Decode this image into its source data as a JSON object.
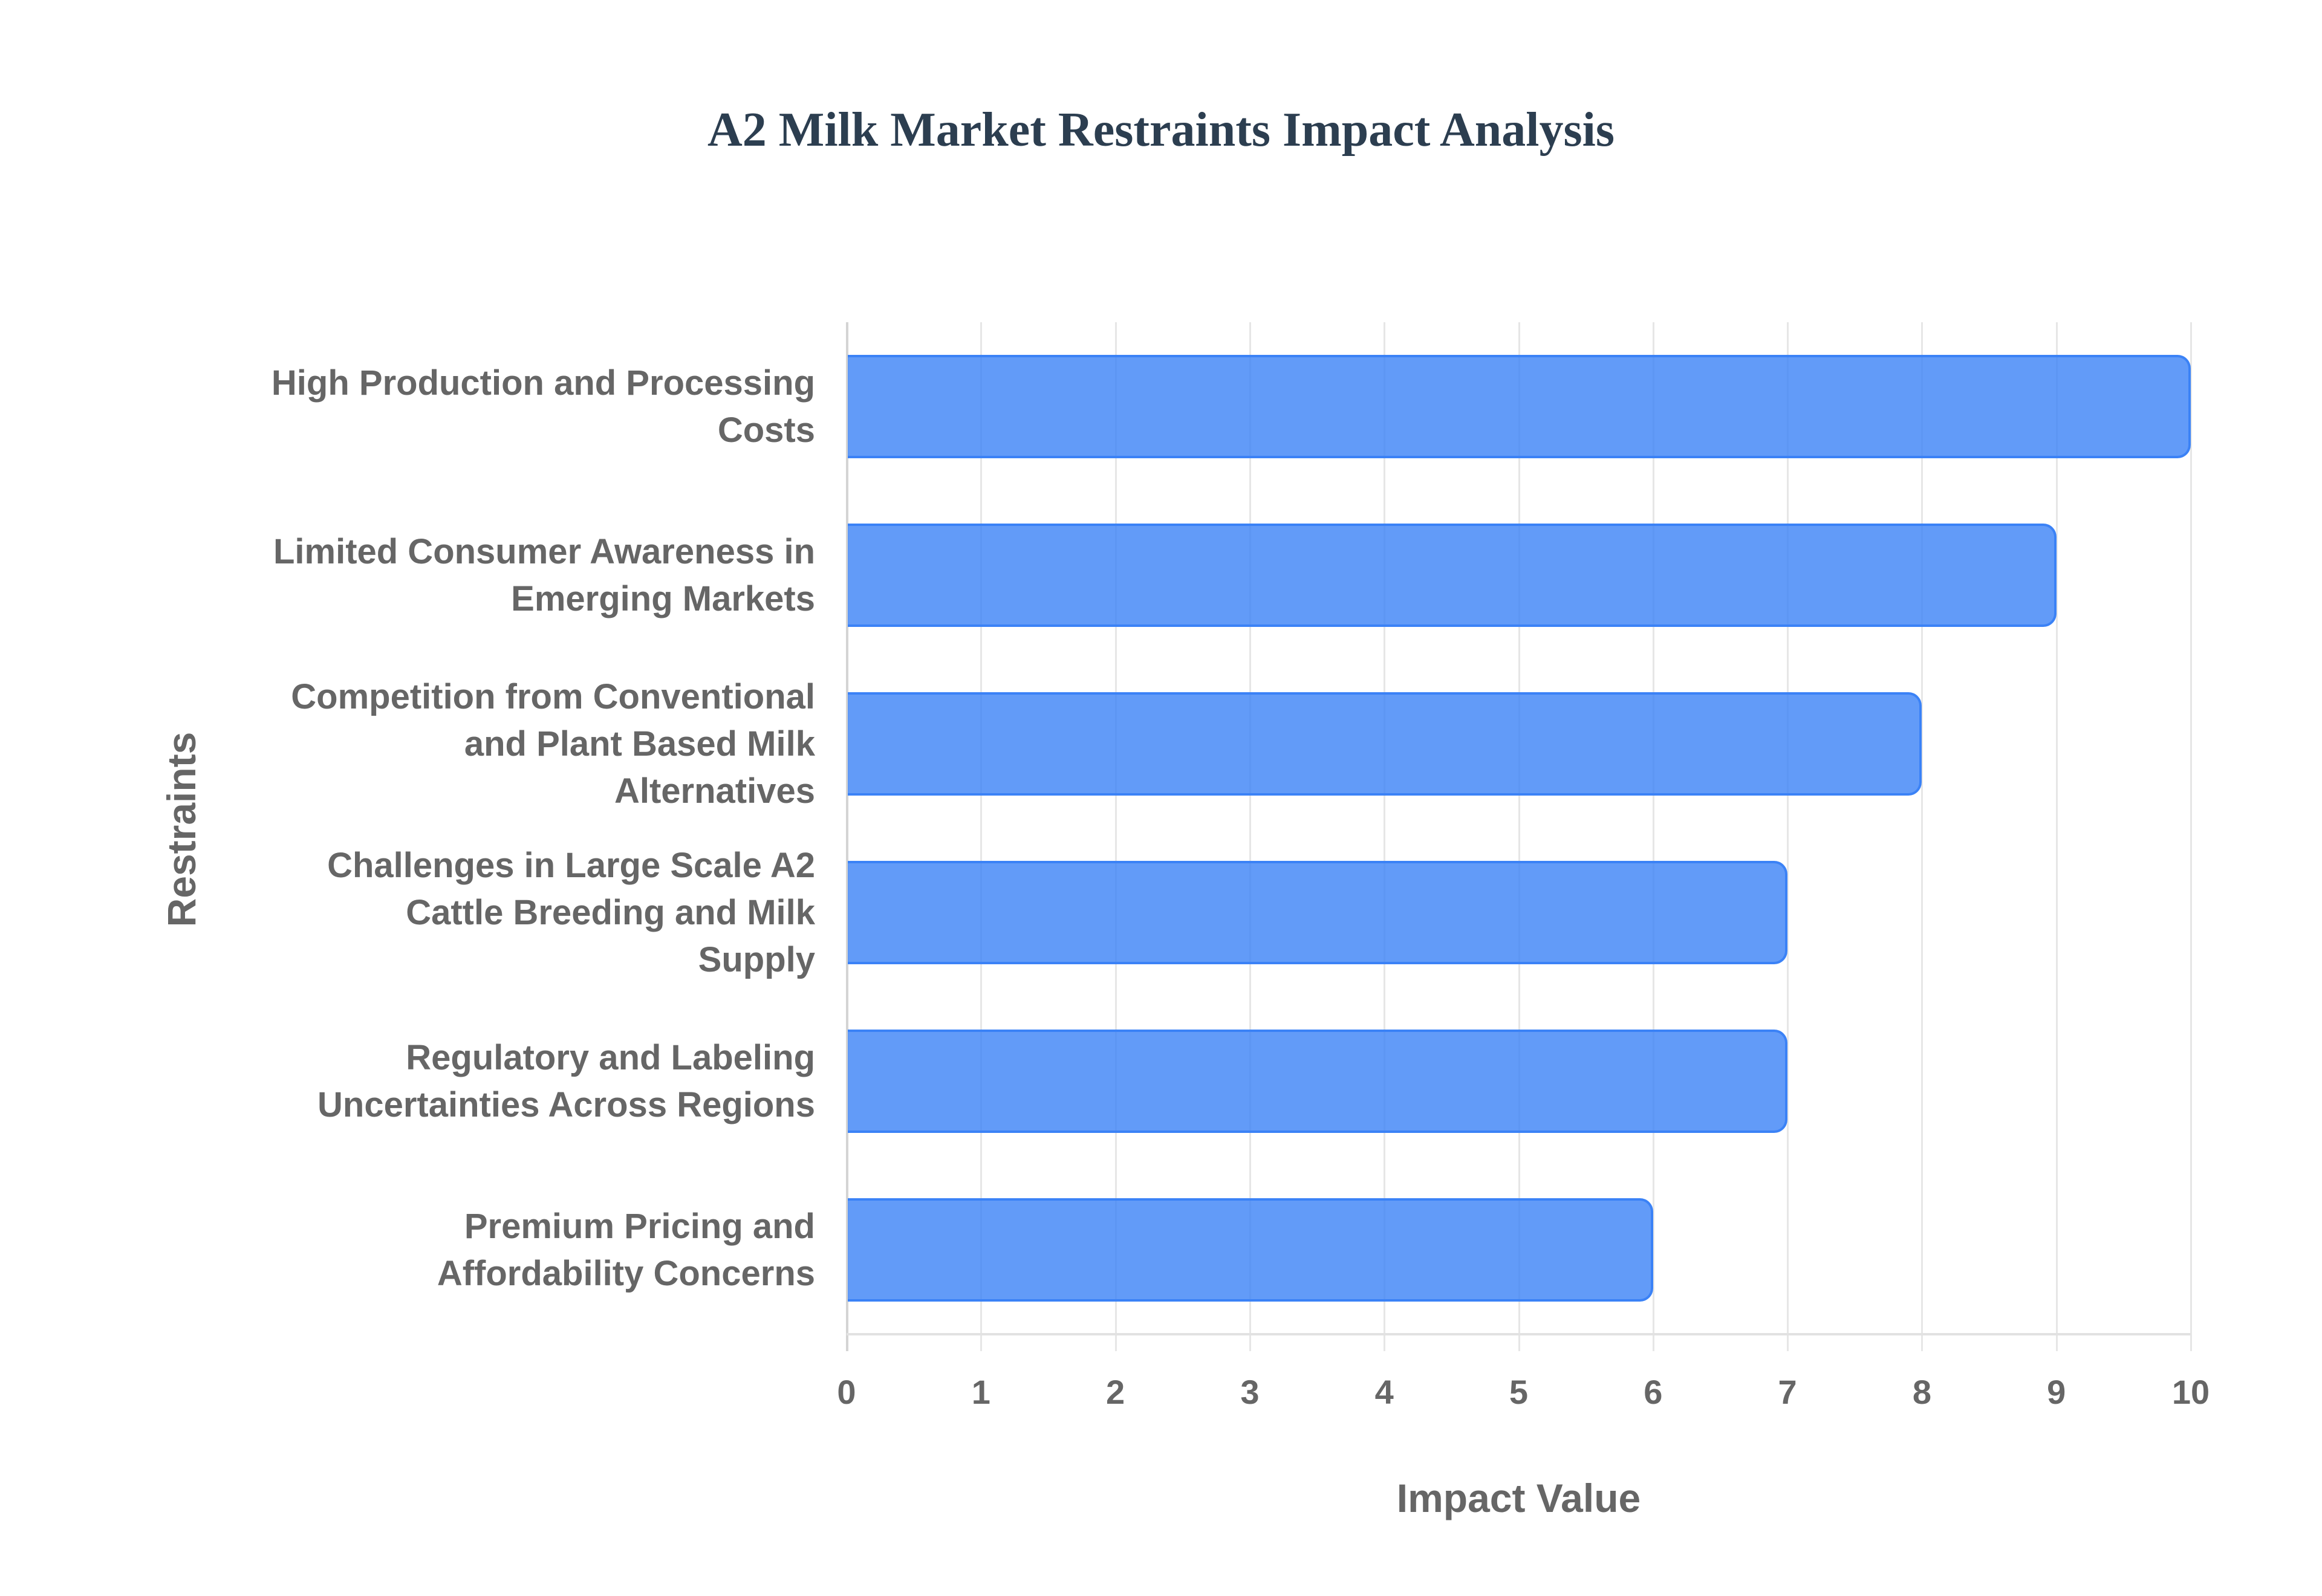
{
  "chart_data": {
    "type": "bar",
    "orientation": "horizontal",
    "title": "A2 Milk Market Restraints Impact Analysis",
    "xlabel": "Impact Value",
    "ylabel": "Restraints",
    "xlim": [
      0,
      10
    ],
    "x_ticks": [
      "0",
      "1",
      "2",
      "3",
      "4",
      "5",
      "6",
      "7",
      "8",
      "9",
      "10"
    ],
    "grid": true,
    "legend": null,
    "categories": [
      "High Production and Processing Costs",
      "Limited Consumer Awareness in Emerging Markets",
      "Competition from Conventional and Plant Based Milk Alternatives",
      "Challenges in Large Scale A2 Cattle Breeding and Milk Supply",
      "Regulatory and Labeling Uncertainties Across Regions",
      "Premium Pricing and Affordability Concerns"
    ],
    "category_lines": [
      [
        "High Production and Processing",
        "Costs"
      ],
      [
        "Limited Consumer Awareness in",
        "Emerging Markets"
      ],
      [
        "Competition from Conventional",
        "and Plant Based Milk",
        "Alternatives"
      ],
      [
        "Challenges in Large Scale A2",
        "Cattle Breeding and Milk",
        "Supply"
      ],
      [
        "Regulatory and Labeling",
        "Uncertainties Across Regions"
      ],
      [
        "Premium Pricing and",
        "Affordability Concerns"
      ]
    ],
    "values": [
      10,
      9,
      8,
      7,
      7,
      6
    ],
    "colors": {
      "bar_fill": "#6399f4",
      "bar_border": "#3b82f6",
      "title": "#2c3e50",
      "text": "#666666",
      "grid": "#e6e6e6"
    }
  }
}
